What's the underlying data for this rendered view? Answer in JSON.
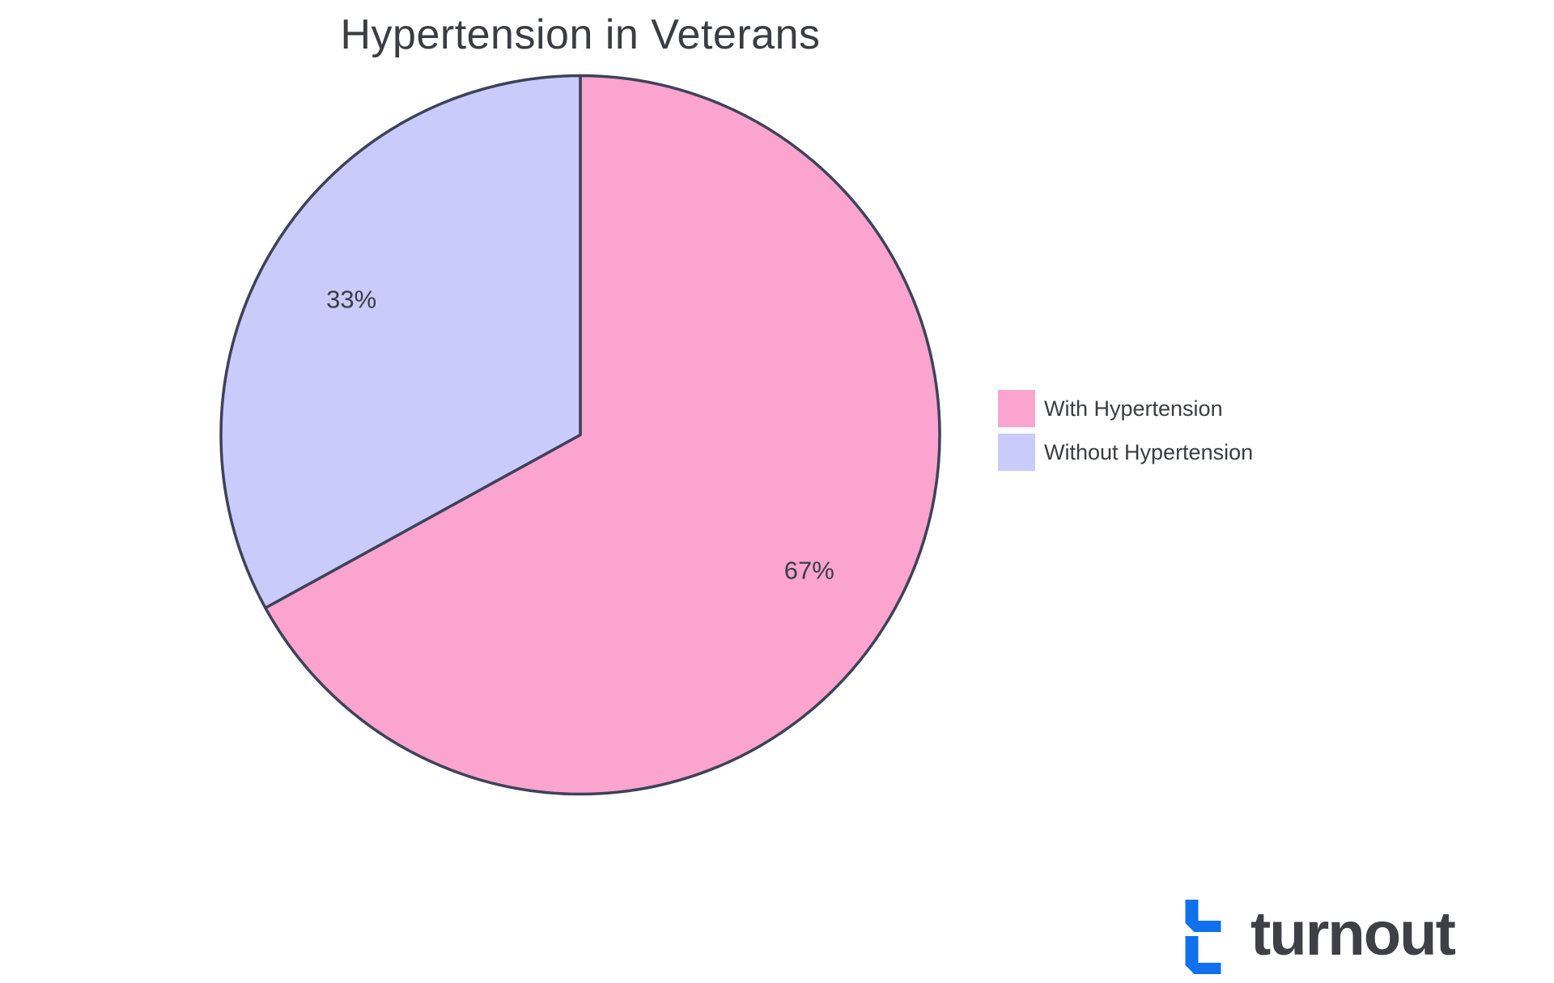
{
  "chart_data": {
    "type": "pie",
    "title": "Hypertension in Veterans",
    "labels": [
      "With Hypertension",
      "Without Hypertension"
    ],
    "values": [
      67,
      33
    ],
    "slice_text": [
      "67%",
      "33%"
    ],
    "colors": [
      "#FAA4CF",
      "#C9CBFA"
    ],
    "outline_color": "#3E4258",
    "text_color": "#3b3d42",
    "slice_label_font_px": 31,
    "start_angle_deg": 0,
    "direction": "clockwise",
    "legend_position": "right"
  },
  "branding": {
    "wordmark": "turnout",
    "logo_icon": "turnout-t-icon",
    "logo_color": "#1170ED",
    "wordmark_color": "#3e4045"
  }
}
